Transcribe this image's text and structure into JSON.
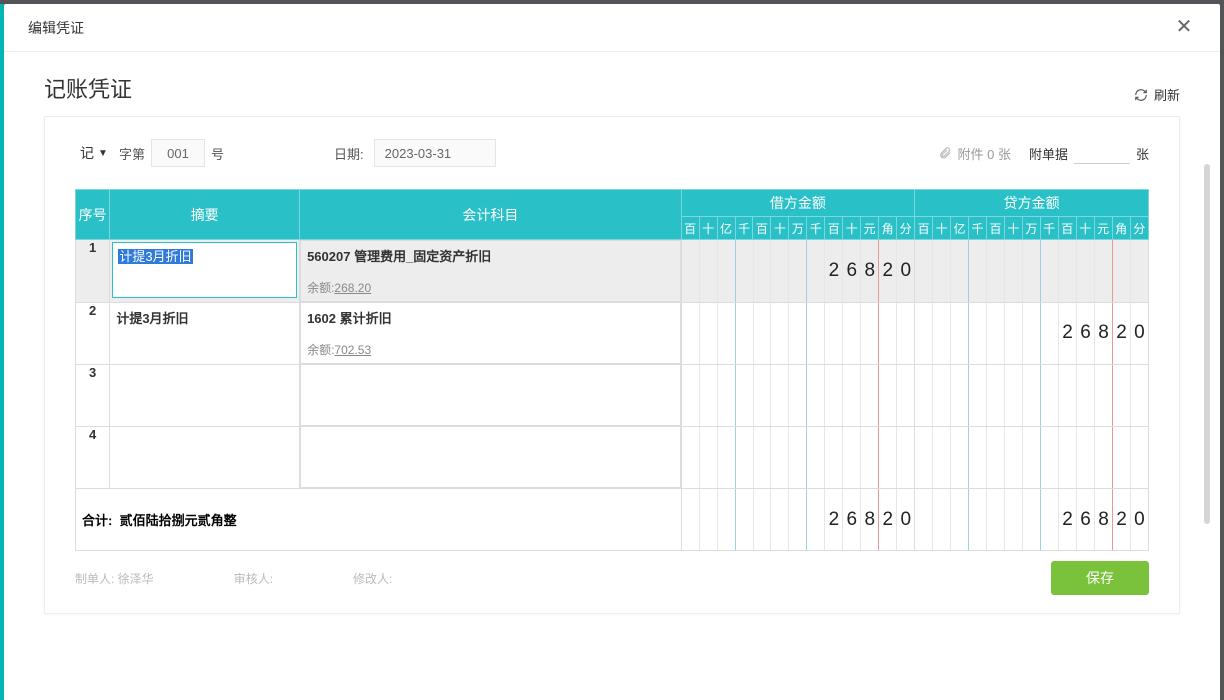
{
  "modal_title": "编辑凭证",
  "page_title": "记账凭证",
  "refresh_label": "刷新",
  "voucher_type": "记",
  "voucher_word_prefix": "字第",
  "voucher_number": "001",
  "voucher_word_suffix": "号",
  "date_label": "日期:",
  "date_value": "2023-03-31",
  "attach_label": "附件 0 张",
  "slip_label": "附单据",
  "slip_value": "",
  "slip_suffix": "张",
  "columns": {
    "seq": "序号",
    "summary": "摘要",
    "account": "会计科目",
    "debit": "借方金额",
    "credit": "贷方金额"
  },
  "digit_units": [
    "百",
    "十",
    "亿",
    "千",
    "百",
    "十",
    "万",
    "千",
    "百",
    "十",
    "元",
    "角",
    "分"
  ],
  "blue_after": [
    2,
    6
  ],
  "red_after": [
    10
  ],
  "rows": [
    {
      "seq": "1",
      "summary": "计提3月折旧",
      "summary_selected": true,
      "account": "560207 管理费用_固定资产折旧",
      "balance_label": "余额:",
      "balance": "268.20",
      "debit": "26820",
      "credit": ""
    },
    {
      "seq": "2",
      "summary": "计提3月折旧",
      "summary_selected": false,
      "account": "1602 累计折旧",
      "balance_label": "余额:",
      "balance": "702.53",
      "debit": "",
      "credit": "26820"
    },
    {
      "seq": "3",
      "summary": "",
      "account": "",
      "balance_label": "",
      "balance": "",
      "debit": "",
      "credit": ""
    },
    {
      "seq": "4",
      "summary": "",
      "account": "",
      "balance_label": "",
      "balance": "",
      "debit": "",
      "credit": ""
    }
  ],
  "sum_prefix": "合计:",
  "sum_words": "贰佰陆拾捌元贰角整",
  "sum_debit": "26820",
  "sum_credit": "26820",
  "preparer_label": "制单人: ",
  "preparer": "徐泽华",
  "reviewer_label": "审核人:",
  "modifier_label": "修改人:",
  "save_label": "保存",
  "colors": {
    "header_bg": "#2ac0c7",
    "accent": "#00b5b4",
    "save_bg": "#7ac23c",
    "digit_blue": "#9ecfe6",
    "digit_red": "#e39a9a"
  }
}
